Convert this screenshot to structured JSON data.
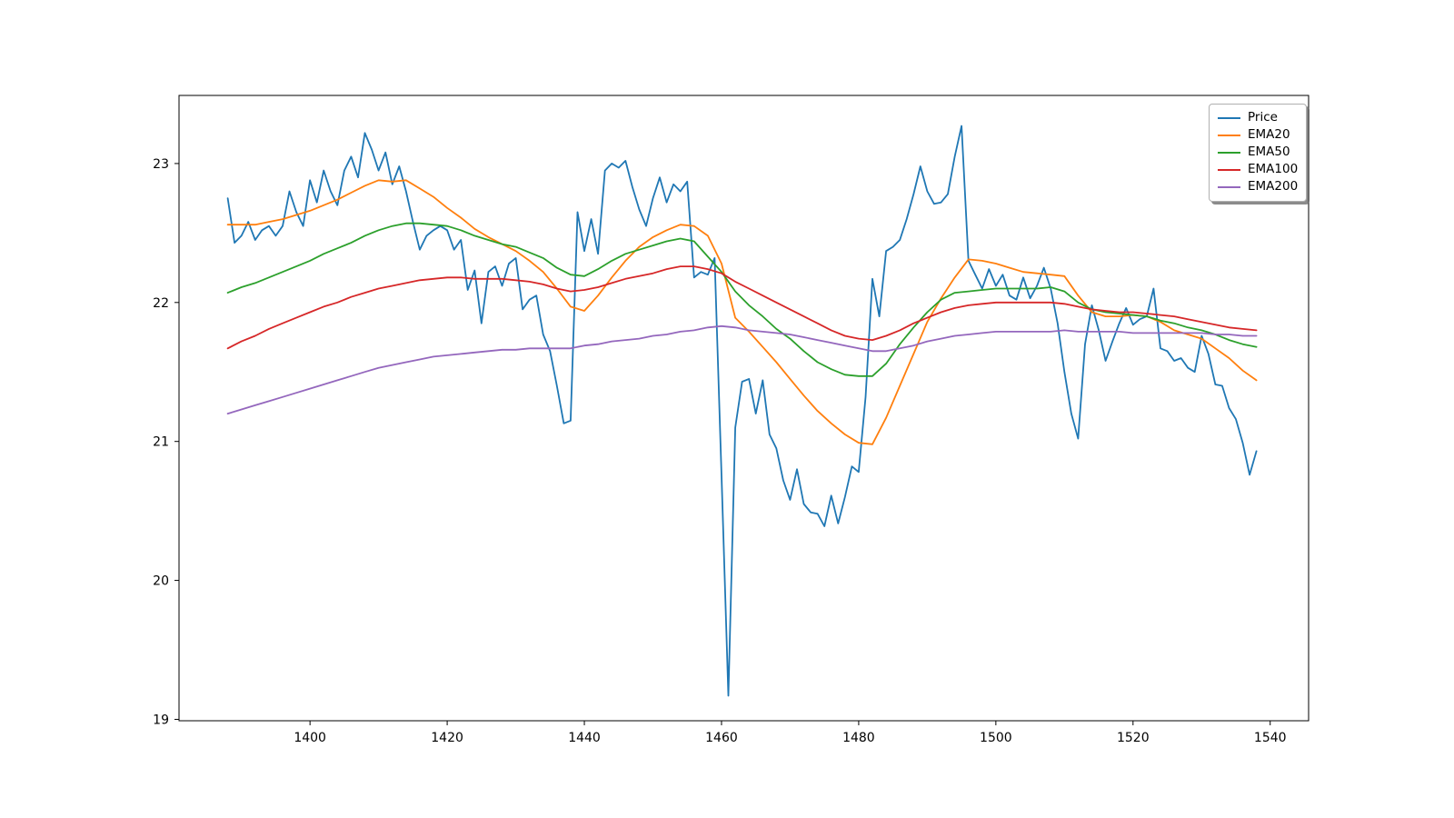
{
  "chart_data": {
    "type": "line",
    "title": "",
    "xlabel": "",
    "ylabel": "",
    "grid": false,
    "axes": {
      "xlim": [
        1380.9,
        1545.6
      ],
      "ylim": [
        18.99,
        23.49
      ],
      "xticks": [
        1400,
        1420,
        1440,
        1460,
        1480,
        1500,
        1520,
        1540
      ],
      "yticks": [
        19,
        20,
        21,
        22,
        23
      ]
    },
    "legend": {
      "location": "upper right",
      "border_color": "#b0b0b0",
      "shadow": true
    },
    "series": [
      {
        "name": "Price",
        "color": "#1f77b4",
        "x_start": 1388,
        "x_step": 1,
        "values": [
          22.75,
          22.43,
          22.48,
          22.58,
          22.45,
          22.52,
          22.55,
          22.48,
          22.55,
          22.8,
          22.65,
          22.55,
          22.88,
          22.72,
          22.95,
          22.8,
          22.7,
          22.95,
          23.05,
          22.9,
          23.22,
          23.1,
          22.95,
          23.08,
          22.85,
          22.98,
          22.8,
          22.58,
          22.38,
          22.48,
          22.52,
          22.55,
          22.52,
          22.38,
          22.45,
          22.09,
          22.23,
          21.85,
          22.22,
          22.26,
          22.12,
          22.28,
          22.32,
          21.95,
          22.02,
          22.05,
          21.77,
          21.65,
          21.4,
          21.13,
          21.15,
          22.65,
          22.37,
          22.6,
          22.35,
          22.95,
          23.0,
          22.97,
          23.02,
          22.83,
          22.67,
          22.55,
          22.75,
          22.9,
          22.72,
          22.85,
          22.8,
          22.87,
          22.18,
          22.22,
          22.2,
          22.32,
          20.75,
          19.17,
          21.1,
          21.43,
          21.45,
          21.2,
          21.44,
          21.05,
          20.95,
          20.72,
          20.58,
          20.8,
          20.55,
          20.49,
          20.48,
          20.39,
          20.61,
          20.41,
          20.6,
          20.82,
          20.78,
          21.32,
          22.17,
          21.9,
          22.37,
          22.4,
          22.45,
          22.6,
          22.78,
          22.98,
          22.8,
          22.71,
          22.72,
          22.78,
          23.05,
          23.27,
          22.3,
          22.2,
          22.1,
          22.24,
          22.12,
          22.2,
          22.05,
          22.02,
          22.18,
          22.03,
          22.12,
          22.25,
          22.1,
          21.85,
          21.5,
          21.2,
          21.02,
          21.7,
          21.98,
          21.8,
          21.58,
          21.72,
          21.85,
          21.96,
          21.84,
          21.88,
          21.9,
          22.1,
          21.67,
          21.65,
          21.58,
          21.6,
          21.53,
          21.5,
          21.76,
          21.63,
          21.41,
          21.4,
          21.24,
          21.16,
          20.99,
          20.76,
          20.93
        ]
      },
      {
        "name": "EMA20",
        "color": "#ff7f0e",
        "x_start": 1388,
        "x_step": 2,
        "values": [
          22.56,
          22.56,
          22.56,
          22.58,
          22.6,
          22.63,
          22.66,
          22.7,
          22.74,
          22.79,
          22.84,
          22.88,
          22.87,
          22.88,
          22.82,
          22.76,
          22.68,
          22.61,
          22.53,
          22.47,
          22.42,
          22.37,
          22.3,
          22.22,
          22.1,
          21.97,
          21.94,
          22.05,
          22.18,
          22.3,
          22.4,
          22.47,
          22.52,
          22.56,
          22.55,
          22.48,
          22.28,
          21.89,
          21.79,
          21.68,
          21.57,
          21.45,
          21.33,
          21.22,
          21.13,
          21.05,
          20.99,
          20.98,
          21.17,
          21.4,
          21.63,
          21.86,
          22.03,
          22.18,
          22.31,
          22.3,
          22.28,
          22.25,
          22.22,
          22.21,
          22.2,
          22.19,
          22.05,
          21.93,
          21.9,
          21.9,
          21.91,
          21.9,
          21.86,
          21.8,
          21.77,
          21.74,
          21.67,
          21.6,
          21.51,
          21.44
        ]
      },
      {
        "name": "EMA50",
        "color": "#2ca02c",
        "x_start": 1388,
        "x_step": 2,
        "values": [
          22.07,
          22.11,
          22.14,
          22.18,
          22.22,
          22.26,
          22.3,
          22.35,
          22.39,
          22.43,
          22.48,
          22.52,
          22.55,
          22.57,
          22.57,
          22.56,
          22.55,
          22.52,
          22.48,
          22.45,
          22.42,
          22.4,
          22.36,
          22.32,
          22.25,
          22.2,
          22.19,
          22.24,
          22.3,
          22.35,
          22.38,
          22.41,
          22.44,
          22.46,
          22.44,
          22.33,
          22.22,
          22.08,
          21.98,
          21.9,
          21.81,
          21.74,
          21.65,
          21.57,
          21.52,
          21.48,
          21.47,
          21.47,
          21.56,
          21.7,
          21.82,
          21.93,
          22.02,
          22.07,
          22.08,
          22.09,
          22.1,
          22.1,
          22.1,
          22.1,
          22.11,
          22.08,
          22.0,
          21.95,
          21.93,
          21.92,
          21.91,
          21.9,
          21.87,
          21.85,
          21.82,
          21.8,
          21.77,
          21.73,
          21.7,
          21.68
        ]
      },
      {
        "name": "EMA100",
        "color": "#d62728",
        "x_start": 1388,
        "x_step": 2,
        "values": [
          21.67,
          21.72,
          21.76,
          21.81,
          21.85,
          21.89,
          21.93,
          21.97,
          22.0,
          22.04,
          22.07,
          22.1,
          22.12,
          22.14,
          22.16,
          22.17,
          22.18,
          22.18,
          22.17,
          22.17,
          22.17,
          22.16,
          22.15,
          22.13,
          22.1,
          22.08,
          22.09,
          22.11,
          22.14,
          22.17,
          22.19,
          22.21,
          22.24,
          22.26,
          22.26,
          22.24,
          22.21,
          22.15,
          22.1,
          22.05,
          22.0,
          21.95,
          21.9,
          21.85,
          21.8,
          21.76,
          21.74,
          21.73,
          21.76,
          21.8,
          21.85,
          21.89,
          21.93,
          21.96,
          21.98,
          21.99,
          22.0,
          22.0,
          22.0,
          22.0,
          22.0,
          21.99,
          21.97,
          21.95,
          21.94,
          21.93,
          21.93,
          21.92,
          21.91,
          21.9,
          21.88,
          21.86,
          21.84,
          21.82,
          21.81,
          21.8
        ]
      },
      {
        "name": "EMA200",
        "color": "#9467bd",
        "x_start": 1388,
        "x_step": 2,
        "values": [
          21.2,
          21.23,
          21.26,
          21.29,
          21.32,
          21.35,
          21.38,
          21.41,
          21.44,
          21.47,
          21.5,
          21.53,
          21.55,
          21.57,
          21.59,
          21.61,
          21.62,
          21.63,
          21.64,
          21.65,
          21.66,
          21.66,
          21.67,
          21.67,
          21.67,
          21.67,
          21.69,
          21.7,
          21.72,
          21.73,
          21.74,
          21.76,
          21.77,
          21.79,
          21.8,
          21.82,
          21.83,
          21.82,
          21.8,
          21.79,
          21.78,
          21.77,
          21.75,
          21.73,
          21.71,
          21.69,
          21.67,
          21.65,
          21.65,
          21.67,
          21.69,
          21.72,
          21.74,
          21.76,
          21.77,
          21.78,
          21.79,
          21.79,
          21.79,
          21.79,
          21.79,
          21.8,
          21.79,
          21.79,
          21.79,
          21.79,
          21.78,
          21.78,
          21.78,
          21.78,
          21.78,
          21.78,
          21.77,
          21.77,
          21.76,
          21.76
        ]
      }
    ]
  }
}
